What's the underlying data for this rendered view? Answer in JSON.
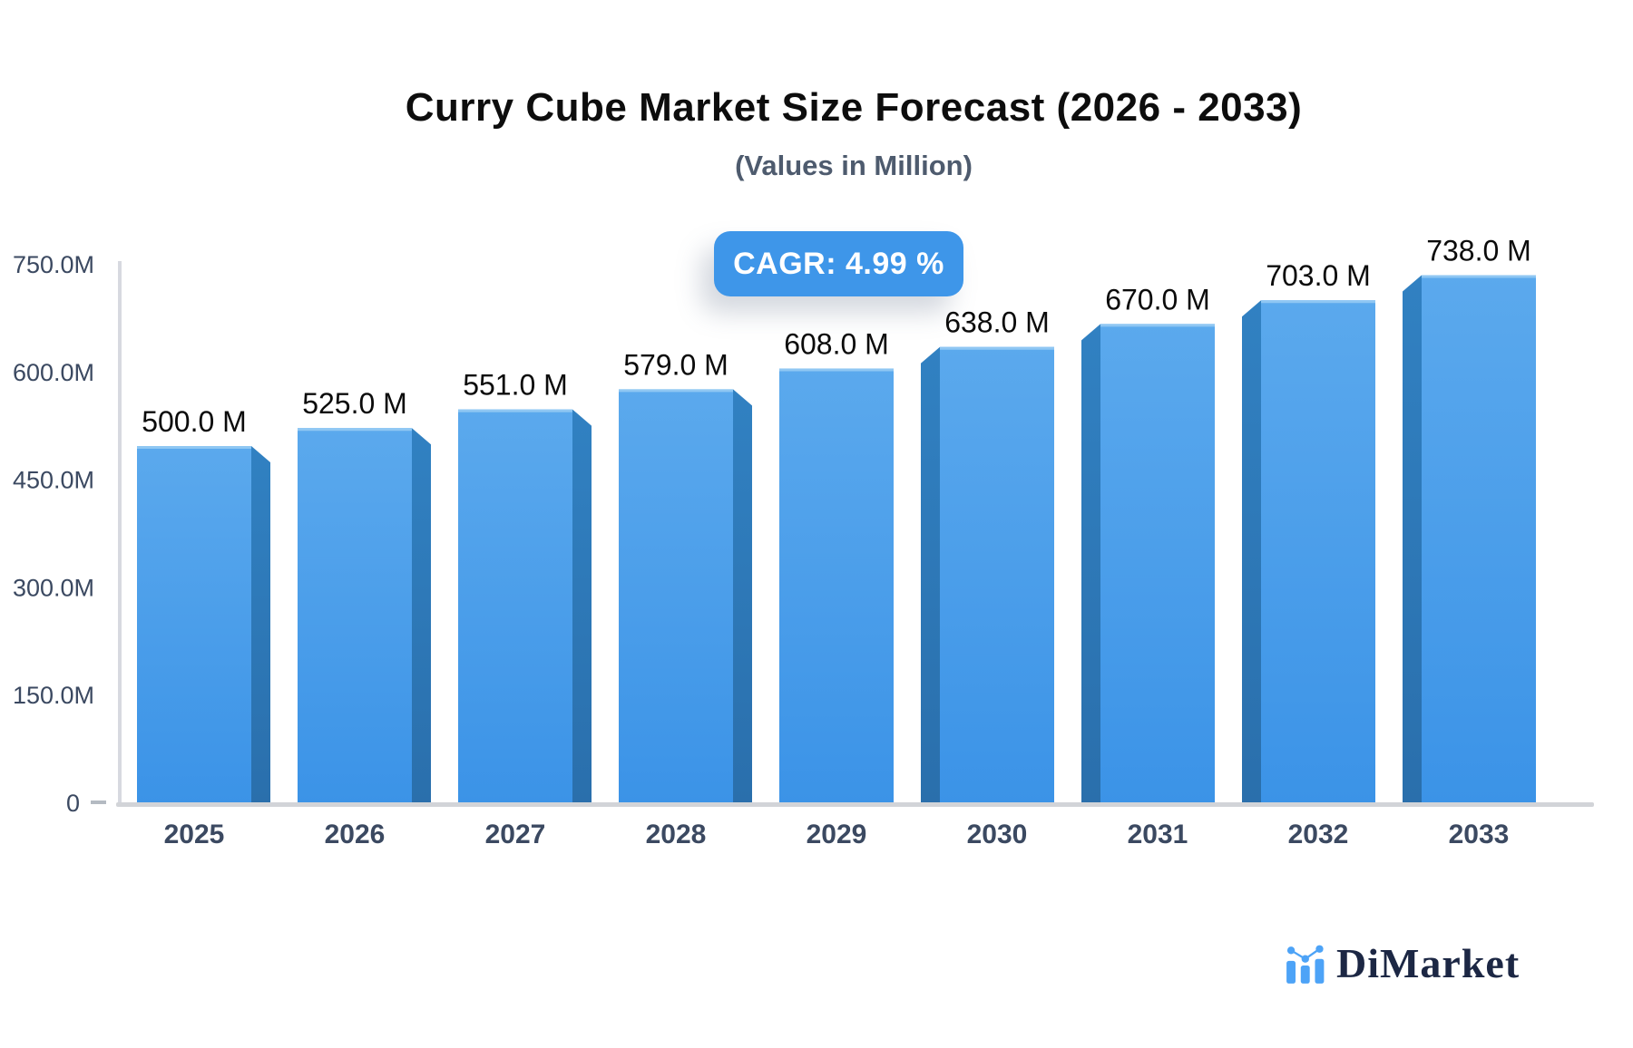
{
  "page": {
    "background": "#ffffff"
  },
  "chart_data": {
    "type": "bar",
    "title": "Curry Cube Market Size Forecast (2026 - 2033)",
    "subtitle": "(Values in Million)",
    "cagr_badge": "CAGR: 4.99 %",
    "categories": [
      "2025",
      "2026",
      "2027",
      "2028",
      "2029",
      "2030",
      "2031",
      "2032",
      "2033"
    ],
    "values": [
      500,
      525,
      551,
      579,
      608,
      638,
      670,
      703,
      738
    ],
    "value_labels": [
      "500.0 M",
      "525.0 M",
      "551.0 M",
      "579.0 M",
      "608.0 M",
      "638.0 M",
      "670.0 M",
      "703.0 M",
      "738.0 M"
    ],
    "xlabel": "",
    "ylabel": "",
    "ylim": [
      0,
      750
    ],
    "ytick_values": [
      0,
      150,
      300,
      450,
      600,
      750
    ],
    "ytick_labels": [
      "0",
      "150.0M",
      "300.0M",
      "450.0M",
      "600.0M",
      "750.0M"
    ],
    "grid": false,
    "legend": "none",
    "bar_style": "3d-perspective-center",
    "colors": {
      "bar_face_top": "#5BA9ED",
      "bar_face_bottom": "#3B93E7",
      "bar_side_top": "#3181C2",
      "bar_side_bottom": "#2A6FAC",
      "bar_top_highlight": "#8FC7F3",
      "axis_line": "#D7D9E0",
      "baseline": "#D2D4D8",
      "tick_dash": "#B4BAC2",
      "badge_bg": "#3E96E9",
      "badge_text": "#FFFFFF",
      "title_text": "#0D0D0D",
      "subtitle_text": "#4E5B6E",
      "axis_label": "#3B4961",
      "value_label": "#0B0B0B"
    }
  },
  "logo": {
    "text": "DiMarket",
    "color": "#1C2744",
    "icon": "mini-bar-line-chart-icon",
    "icon_color": "#4DA3F7"
  }
}
